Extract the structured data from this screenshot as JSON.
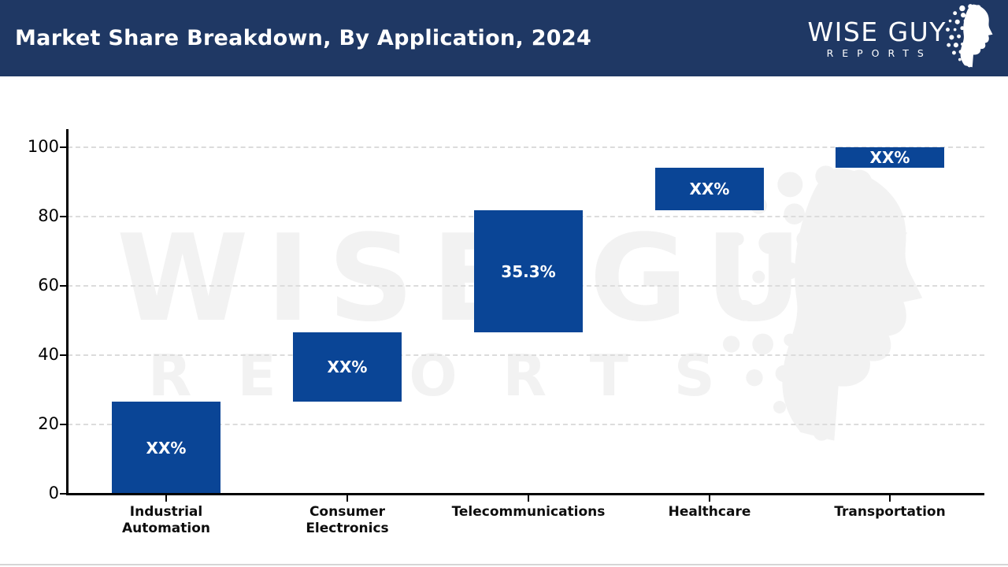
{
  "header": {
    "title": "Market Share Breakdown, By Application, 2024",
    "bg_color": "#1f3864",
    "logo": {
      "line1": "WISE GUY",
      "line2": "REPORTS"
    }
  },
  "watermark": {
    "line1": "WISE GUY",
    "line2": "REPORTS"
  },
  "footer": {
    "rule_color": "#d5d5d5"
  },
  "chart_data": {
    "type": "bar",
    "subtype": "waterfall",
    "title": "Market Share Breakdown, By Application, 2024",
    "categories": [
      "Industrial Automation",
      "Consumer Electronics",
      "Telecommunications",
      "Healthcare",
      "Transportation"
    ],
    "category_display_lines": [
      [
        "Industrial",
        "Automation"
      ],
      [
        "Consumer",
        "Electronics"
      ],
      [
        "Telecommunications"
      ],
      [
        "Healthcare"
      ],
      [
        "Transportation"
      ]
    ],
    "values": [
      26.5,
      20.0,
      35.3,
      12.3,
      5.9
    ],
    "starts": [
      0,
      26.5,
      46.5,
      81.8,
      94.1
    ],
    "bar_labels": [
      "XX%",
      "XX%",
      "35.3%",
      "XX%",
      "XX%"
    ],
    "xlabel": "",
    "ylabel": "",
    "ylim": [
      0,
      100
    ],
    "yticks": [
      0,
      20,
      40,
      60,
      80,
      100
    ],
    "grid": "horizontal dashed",
    "legend": "none",
    "bar_color": "#0a4596",
    "label_color": "#ffffff"
  }
}
